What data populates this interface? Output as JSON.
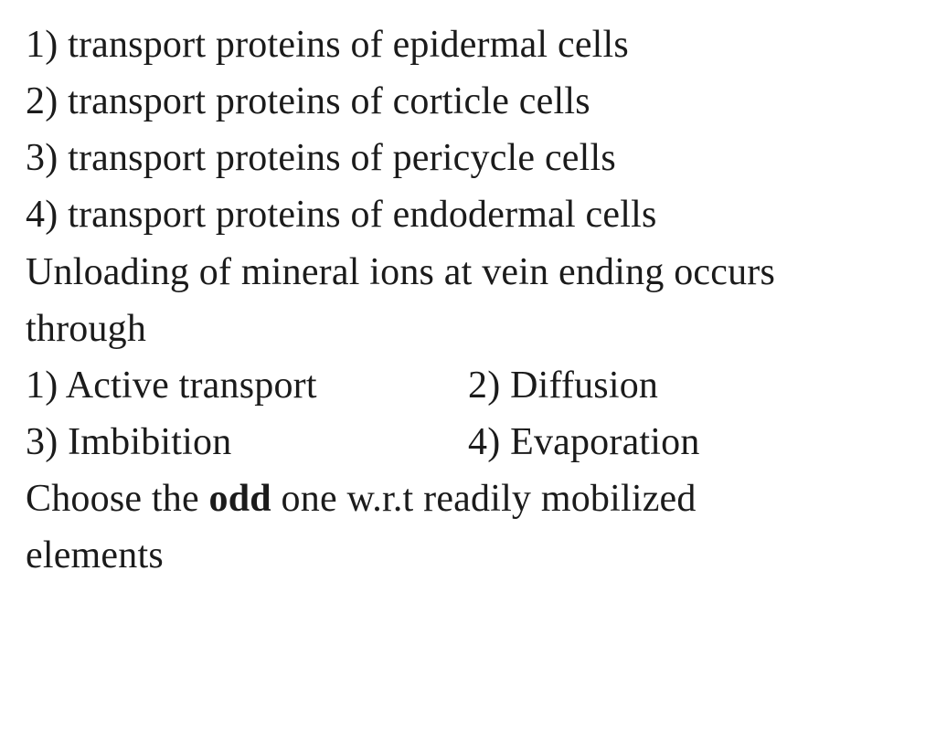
{
  "typography": {
    "font_family": "Times New Roman",
    "font_size_pt": 32,
    "line_height": 1.48,
    "text_color": "#1b1b1b",
    "background_color": "#ffffff"
  },
  "q1": {
    "options": {
      "o1": "1) transport proteins of epidermal cells",
      "o2": "2) transport proteins of corticle cells",
      "o3": "3) transport proteins of pericycle cells",
      "o4": "4) transport proteins of endodermal cells"
    }
  },
  "q2": {
    "body_line1": "Unloading of mineral ions at vein ending occurs",
    "body_line2": "through",
    "options": {
      "o1": "1) Active transport",
      "o2": "2) Diffusion",
      "o3": "3) Imbibition",
      "o4": "4) Evaporation"
    }
  },
  "q3": {
    "pre": "Choose the ",
    "bold": "odd",
    "post": " one w.r.t readily mobilized",
    "line2": "elements"
  }
}
